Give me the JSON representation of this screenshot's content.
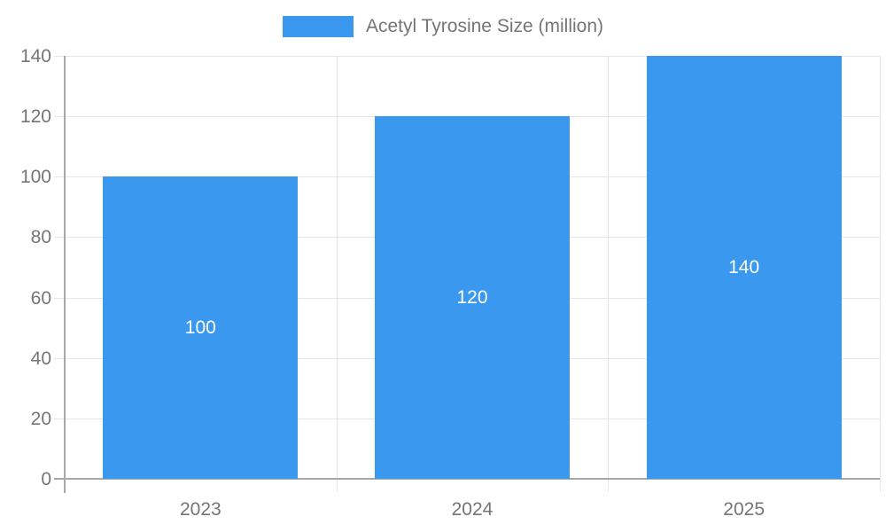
{
  "legend": {
    "label": "Acetyl Tyrosine Size (million)"
  },
  "colors": {
    "bar": "#3a99ee",
    "text": "#757575",
    "grid": "#e6e6e6",
    "axis": "#a8a8a8",
    "value_label": "#ffffff",
    "background": "#ffffff"
  },
  "chart_data": {
    "type": "bar",
    "title": "",
    "categories": [
      "2023",
      "2024",
      "2025"
    ],
    "series": [
      {
        "name": "Acetyl Tyrosine Size (million)",
        "values": [
          100,
          120,
          140
        ]
      }
    ],
    "value_labels": [
      "100",
      "120",
      "140"
    ],
    "xlabel": "",
    "ylabel": "",
    "y_ticks": [
      0,
      20,
      40,
      60,
      80,
      100,
      120,
      140
    ],
    "ylim": [
      0,
      140
    ],
    "grid": true,
    "legend_position": "top"
  }
}
